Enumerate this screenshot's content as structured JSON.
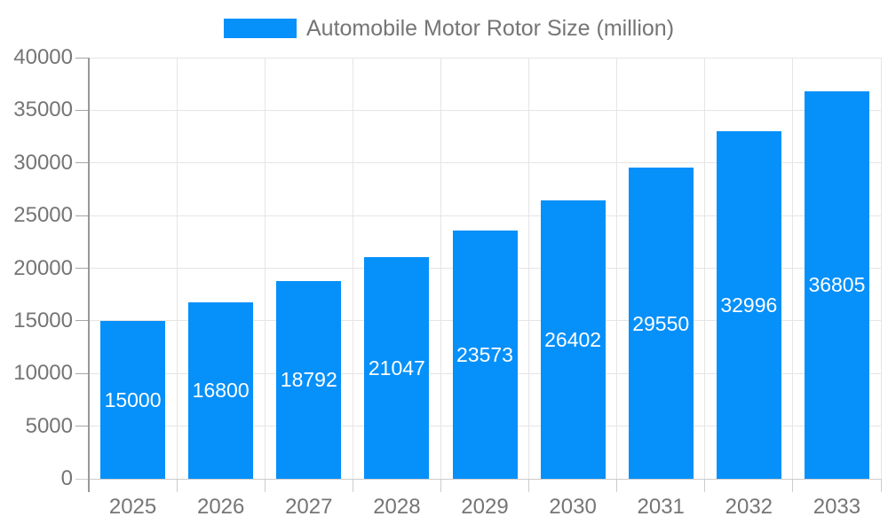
{
  "legend": {
    "label": "Automobile Motor Rotor Size (million)",
    "swatch_color": "#0690fa"
  },
  "chart_data": {
    "type": "bar",
    "title": "Automobile Motor Rotor Size (million)",
    "categories": [
      "2025",
      "2026",
      "2027",
      "2028",
      "2029",
      "2030",
      "2031",
      "2032",
      "2033"
    ],
    "values": [
      15000,
      16800,
      18792,
      21047,
      23573,
      26402,
      29550,
      32996,
      36805
    ],
    "xlabel": "",
    "ylabel": "",
    "ylim": [
      0,
      40000
    ],
    "ytick_step": 5000,
    "grid": true,
    "legend_position": "top",
    "bar_color": "#0690fa",
    "bar_label_color": "#ffffff",
    "axis_text_color": "#757575"
  }
}
